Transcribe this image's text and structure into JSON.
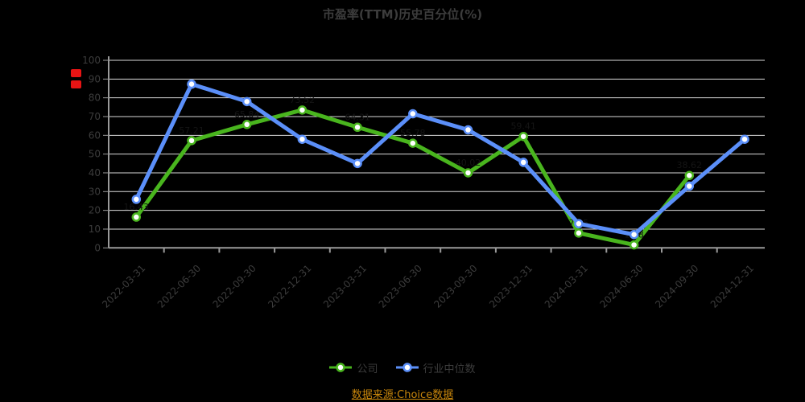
{
  "chart_data": {
    "type": "line",
    "title": "市盈率(TTM)历史百分位(%)",
    "categories": [
      "2022-03-31",
      "2022-06-30",
      "2022-09-30",
      "2022-12-31",
      "2023-03-31",
      "2023-06-30",
      "2023-09-30",
      "2023-12-31",
      "2024-03-31",
      "2024-06-30",
      "2024-09-30",
      "2024-12-31"
    ],
    "series": [
      {
        "name": "公司",
        "color": "#49b51e",
        "values": [
          16.4,
          57.2,
          65.8,
          73.5,
          64.3,
          55.8,
          40.0,
          59.4,
          7.9,
          1.6,
          38.6,
          null
        ],
        "point_labels": [
          "16.43",
          "57.21",
          "65.84",
          "73.52",
          "64.31",
          "55.78",
          "40.02",
          "59.41",
          "7.95",
          "1.58",
          "38.62",
          ""
        ]
      },
      {
        "name": "行业中位数",
        "color": "#5b8ff9",
        "values": [
          25.9,
          87.3,
          78.0,
          57.9,
          45.0,
          71.5,
          62.9,
          45.6,
          12.9,
          7.1,
          32.9,
          57.9
        ],
        "point_labels": []
      }
    ],
    "ylim": [
      0,
      100
    ],
    "ytick_step": 10,
    "grid": true,
    "legend_position": "bottom",
    "x_label_rotation": 45
  },
  "axis_marker": {
    "near_tick": "90",
    "color": "#e81414"
  },
  "footer": {
    "text": "数据来源:Choice数据",
    "color": "#c8860b"
  },
  "colors": {
    "background": "#000000",
    "text": "#3c3c3c",
    "grid": "#d9d9d9",
    "axis": "#9a9a9a",
    "data_label": "#141414",
    "marker_fill": "#ffffff"
  }
}
